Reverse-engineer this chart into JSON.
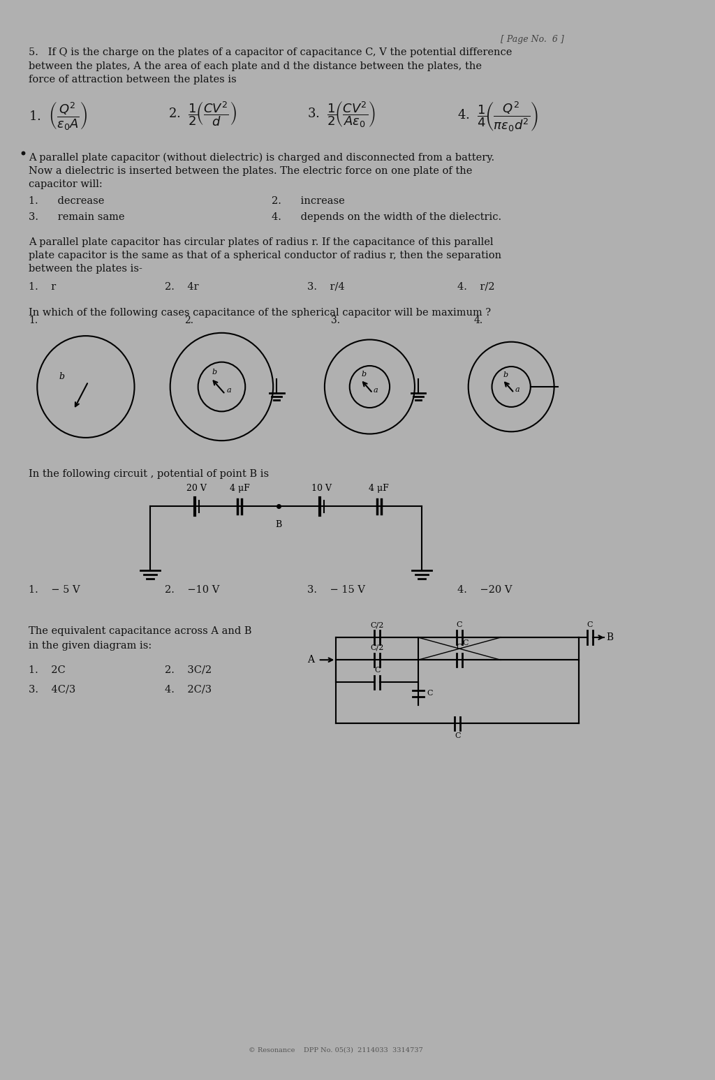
{
  "bg_color": "#c8c8c8",
  "paper_color": "#e8e8e0",
  "text_color": "#111111",
  "page_header": "[ Page No.  6 ]",
  "q5_text_a": "5.   If Q is the charge on the plates of a capacitor of capacitance C, V the potential difference",
  "q5_text_b": "between the plates, A the area of each plate and d the distance between the plates, the",
  "q5_text_c": "force of attraction between the plates is",
  "q6_text_a": "A parallel plate capacitor (without dielectric) is charged and disconnected from a battery.",
  "q6_text_b": "Now a dielectric is inserted between the plates. The electric force on one plate of the",
  "q6_text_c": "capacitor will:",
  "q7_text_a": "A parallel plate capacitor has circular plates of radius r. If the capacitance of this parallel",
  "q7_text_b": "plate capacitor is the same as that of a spherical conductor of radius r, then the separation",
  "q7_text_c": "between the plates is-",
  "q8_text": "In which of the following cases capacitance of the spherical capacitor will be maximum ?",
  "q9_text": "In the following circuit , potential of point B is",
  "q10_text_a": "The equivalent capacitance across A and B",
  "q10_text_b": "in the given diagram is:"
}
